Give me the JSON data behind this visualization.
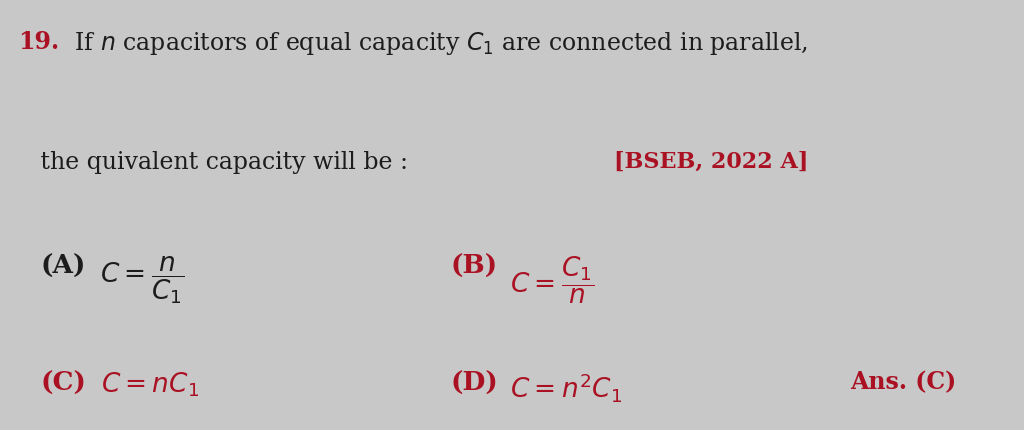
{
  "background_color": "#c8c8c8",
  "question_number": "19.",
  "question_text_line1": " If $n$ capacitors of equal capacity $C_1$ are connected in parallel,",
  "question_text_line2": "   the quivalent capacity will be :",
  "source_tag": "[BSEB, 2022 A]",
  "opt_A_label": "(A)",
  "opt_A_formula": " $C = \\dfrac{n}{C_1}$",
  "opt_B_label": "(B)",
  "opt_B_formula": " $C = \\dfrac{C_1}{n}$",
  "opt_C_label": "(C)",
  "opt_C_formula": " $C = nC_1$",
  "opt_D_label": "(D)",
  "opt_D_formula": " $C = n^2C_1$",
  "answer": "Ans. (C)",
  "color_dark": "#1c1c1c",
  "color_red": "#aa1122",
  "color_dark_red": "#8b1020",
  "fontsize_q": 17,
  "fontsize_opt": 19,
  "fontsize_ans": 17
}
